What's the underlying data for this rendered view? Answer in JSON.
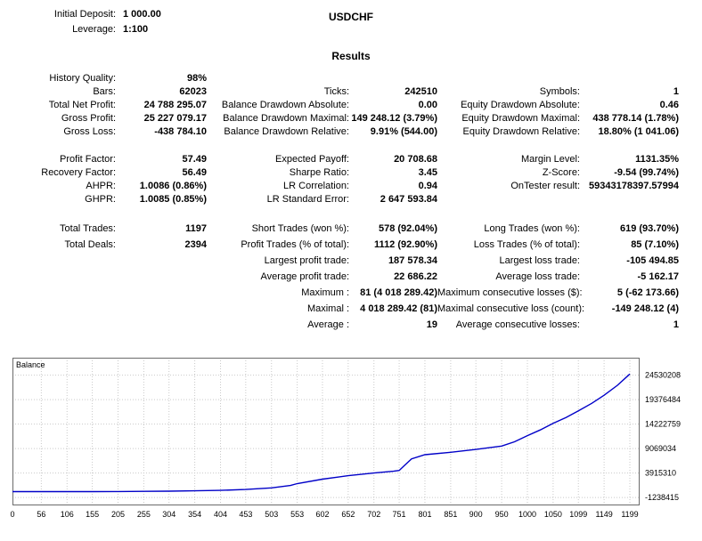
{
  "header": {
    "initial_deposit_label": "Initial Deposit:",
    "initial_deposit_value": "1 000.00",
    "leverage_label": "Leverage:",
    "leverage_value": "1:100",
    "symbol": "USDCHF",
    "results_title": "Results"
  },
  "stats": {
    "groups": [
      {
        "rows": [
          {
            "l1": "History Quality:",
            "v1": "98%",
            "l2": "",
            "v2": "",
            "l3": "",
            "v3": ""
          },
          {
            "l1": "Bars:",
            "v1": "62023",
            "l2": "Ticks:",
            "v2": "242510",
            "l3": "Symbols:",
            "v3": "1"
          },
          {
            "l1": "Total Net Profit:",
            "v1": "24 788 295.07",
            "l2": "Balance Drawdown Absolute:",
            "v2": "0.00",
            "l3": "Equity Drawdown Absolute:",
            "v3": "0.46"
          },
          {
            "l1": "Gross Profit:",
            "v1": "25 227 079.17",
            "l2": "Balance Drawdown Maximal:",
            "v2": "149 248.12 (3.79%)",
            "l3": "Equity Drawdown Maximal:",
            "v3": "438 778.14 (1.78%)"
          },
          {
            "l1": "Gross Loss:",
            "v1": "-438 784.10",
            "l2": "Balance Drawdown Relative:",
            "v2": "9.91% (544.00)",
            "l3": "Equity Drawdown Relative:",
            "v3": "18.80% (1 041.06)"
          }
        ]
      },
      {
        "rows": [
          {
            "l1": "Profit Factor:",
            "v1": "57.49",
            "l2": "Expected Payoff:",
            "v2": "20 708.68",
            "l3": "Margin Level:",
            "v3": "1131.35%"
          },
          {
            "l1": "Recovery Factor:",
            "v1": "56.49",
            "l2": "Sharpe Ratio:",
            "v2": "3.45",
            "l3": "Z-Score:",
            "v3": "-9.54 (99.74%)"
          },
          {
            "l1": "AHPR:",
            "v1": "1.0086 (0.86%)",
            "l2": "LR Correlation:",
            "v2": "0.94",
            "l3": "OnTester result:",
            "v3": "59343178397.57994"
          },
          {
            "l1": "GHPR:",
            "v1": "1.0085 (0.85%)",
            "l2": "LR Standard Error:",
            "v2": "2 647 593.84",
            "l3": "",
            "v3": ""
          }
        ]
      },
      {
        "rows": [
          {
            "l1": "Total Trades:",
            "v1": "1197",
            "l2": "Short Trades (won %):",
            "v2": "578 (92.04%)",
            "l3": "Long Trades (won %):",
            "v3": "619 (93.70%)"
          },
          {
            "l1": "Total Deals:",
            "v1": "2394",
            "l2": "Profit Trades (% of total):",
            "v2": "1112 (92.90%)",
            "l3": "Loss Trades (% of total):",
            "v3": "85 (7.10%)"
          },
          {
            "l1": "",
            "v1": "",
            "l2": "Largest profit trade:",
            "v2": "187 578.34",
            "l3": "Largest loss trade:",
            "v3": "-105 494.85"
          },
          {
            "l1": "",
            "v1": "",
            "l2": "Average profit trade:",
            "v2": "22 686.22",
            "l3": "Average loss trade:",
            "v3": "-5 162.17"
          },
          {
            "l1": "",
            "v1": "",
            "l2": "Maximum :",
            "v2": "81 (4 018 289.42)",
            "l3": "Maximum consecutive losses ($):",
            "v3": "5 (-62 173.66)"
          },
          {
            "l1": "",
            "v1": "",
            "l2": "Maximal :",
            "v2": "4 018 289.42 (81)",
            "l3": "Maximal consecutive loss (count):",
            "v3": "-149 248.12 (4)"
          },
          {
            "l1": "",
            "v1": "",
            "l2": "Average :",
            "v2": "19",
            "l3": "Average consecutive losses:",
            "v3": "1"
          }
        ]
      }
    ]
  },
  "chart_data": {
    "type": "line",
    "title": "Balance",
    "xlabel": "",
    "ylabel": "",
    "xlim": [
      0,
      1218
    ],
    "ylim": [
      -2895000,
      28211000
    ],
    "x_ticks": [
      0,
      56,
      106,
      155,
      205,
      255,
      304,
      354,
      404,
      453,
      503,
      553,
      602,
      652,
      702,
      751,
      801,
      851,
      900,
      950,
      1000,
      1050,
      1099,
      1149,
      1199
    ],
    "y_ticks": [
      24530208,
      19376484,
      14222759,
      9069034,
      3915310,
      -1238415
    ],
    "grid": true,
    "legend_position": "top-left-inside",
    "line_color": "#0000C8",
    "series": [
      {
        "name": "Balance",
        "points": [
          [
            0,
            1000
          ],
          [
            56,
            3000
          ],
          [
            106,
            8000
          ],
          [
            155,
            15000
          ],
          [
            205,
            30000
          ],
          [
            255,
            60000
          ],
          [
            304,
            110000
          ],
          [
            354,
            180000
          ],
          [
            404,
            280000
          ],
          [
            453,
            450000
          ],
          [
            503,
            790000
          ],
          [
            540,
            1300000
          ],
          [
            553,
            1700000
          ],
          [
            602,
            2630000
          ],
          [
            652,
            3360000
          ],
          [
            702,
            3920000
          ],
          [
            740,
            4300000
          ],
          [
            751,
            4470000
          ],
          [
            762,
            5600000
          ],
          [
            775,
            6900000
          ],
          [
            801,
            7780000
          ],
          [
            851,
            8300000
          ],
          [
            900,
            8900000
          ],
          [
            950,
            9600000
          ],
          [
            975,
            10500000
          ],
          [
            1000,
            11800000
          ],
          [
            1025,
            13000000
          ],
          [
            1050,
            14400000
          ],
          [
            1075,
            15600000
          ],
          [
            1099,
            17000000
          ],
          [
            1125,
            18600000
          ],
          [
            1149,
            20300000
          ],
          [
            1175,
            22400000
          ],
          [
            1199,
            24789295
          ]
        ]
      }
    ]
  }
}
